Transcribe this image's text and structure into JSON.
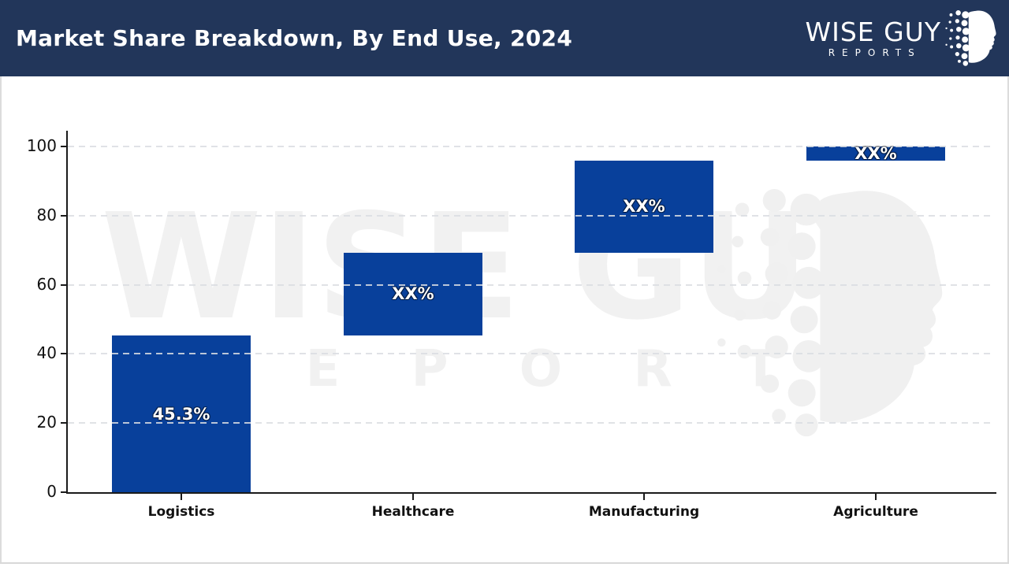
{
  "header": {
    "title": "Market Share Breakdown, By End Use, 2024",
    "logo": {
      "wordmark": "WISE GUY",
      "sub": "REPORTS",
      "icon": "dotted-face-profile"
    }
  },
  "watermark": {
    "wordmark": "WISE GUY",
    "sub": "R E P O R T S",
    "icon": "dotted-face-profile"
  },
  "colors": {
    "header_bg": "#22365A",
    "bar": "#08409B",
    "bar_label": "#FFFFFF",
    "axis": "#1A1A1A",
    "grid": "#DCDCDC",
    "watermark": "#F1F1F1",
    "border": "#D8D8D8"
  },
  "chart_data": {
    "type": "bar",
    "subtype": "waterfall",
    "title": "Market Share Breakdown, By End Use, 2024",
    "categories": [
      "Logistics",
      "Healthcare",
      "Manufacturing",
      "Agriculture"
    ],
    "segments": [
      {
        "category": "Logistics",
        "start": 0,
        "end": 45.3,
        "label": "45.3%"
      },
      {
        "category": "Healthcare",
        "start": 45.3,
        "end": 69.3,
        "label": "XX%"
      },
      {
        "category": "Manufacturing",
        "start": 69.3,
        "end": 95.9,
        "label": "XX%"
      },
      {
        "category": "Agriculture",
        "start": 95.9,
        "end": 100,
        "label": "XX%"
      }
    ],
    "ylim": [
      0,
      105
    ],
    "yticks": [
      0,
      20,
      40,
      60,
      80,
      100
    ],
    "grid": "horizontal-dashed",
    "legend": "none",
    "xlabel": "",
    "ylabel": ""
  }
}
